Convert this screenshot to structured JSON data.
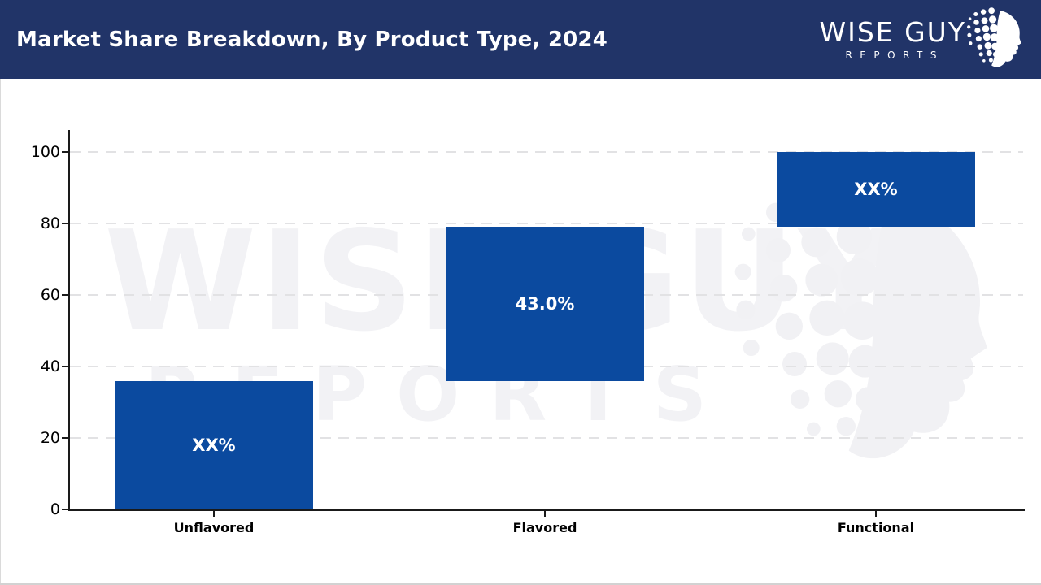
{
  "header": {
    "title": "Market Share Breakdown, By Product Type, 2024",
    "logo": {
      "line1": "WISE GUY",
      "line2": "REPORTS"
    }
  },
  "watermark": {
    "line1": "WISE GUY",
    "line2": "REPORTS"
  },
  "icons": {
    "logo_face": "dotted-head-profile-icon"
  },
  "colors": {
    "header_bg": "#213468",
    "bar": "#0b4a9f",
    "watermark": "#f2f2f5",
    "grid": "#e2e2e4",
    "axis": "#1a1a1a",
    "label_text": "#ffffff"
  },
  "chart_data": {
    "type": "bar",
    "variant": "floating-waterfall",
    "title": "Market Share Breakdown, By Product Type, 2024",
    "xlabel": "",
    "ylabel": "",
    "ylim": [
      0,
      100
    ],
    "yticks": [
      0,
      20,
      40,
      60,
      80,
      100
    ],
    "grid": "horizontal-dashed",
    "legend": "none",
    "categories": [
      "Unflavored",
      "Flavored",
      "Functional"
    ],
    "segments": [
      {
        "category": "Unflavored",
        "start": 0,
        "end": 36,
        "value": 36,
        "label": "XX%"
      },
      {
        "category": "Flavored",
        "start": 36,
        "end": 79,
        "value": 43,
        "label": "43.0%"
      },
      {
        "category": "Functional",
        "start": 79,
        "end": 100,
        "value": 21,
        "label": "XX%"
      }
    ]
  }
}
